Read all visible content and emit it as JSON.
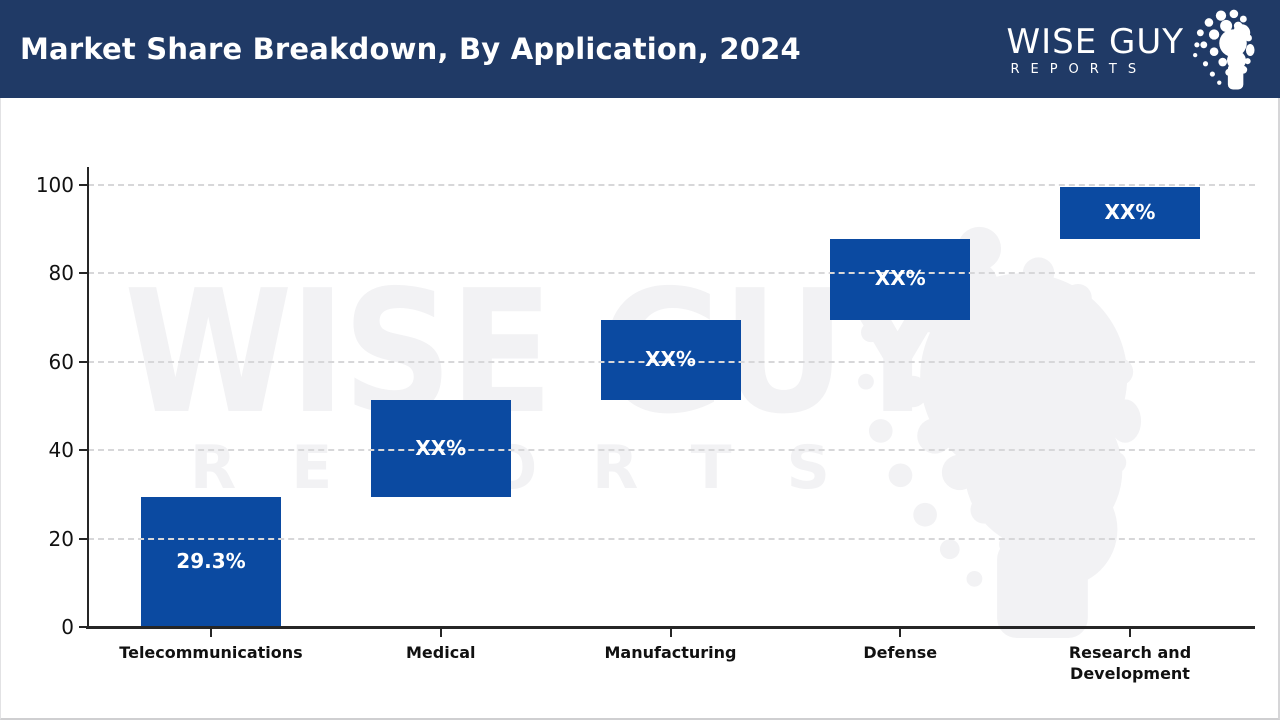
{
  "header": {
    "title": "Market Share Breakdown, By Application, 2024",
    "logo": {
      "wordmark": "WISE GUY",
      "subtext": "REPORTS"
    }
  },
  "watermark": {
    "wordmark": "WISE GUY",
    "subtext": "REPORTS"
  },
  "colors": {
    "header_bg": "#203A66",
    "title_text": "#FFFFFF",
    "bar": "#0B4AA1",
    "bar_label": "#FFFFFF",
    "grid": "#D7D7D9",
    "axis": "#262626",
    "watermark": "#F2F2F4"
  },
  "chart_data": {
    "type": "bar",
    "subtype": "waterfall",
    "title": "Market Share Breakdown, By Application, 2024",
    "categories": [
      "Telecommunications",
      "Medical",
      "Manufacturing",
      "Defense",
      "Research and Development"
    ],
    "segments": [
      {
        "category": "Telecommunications",
        "start": 0,
        "end": 29.3,
        "label": "29.3%"
      },
      {
        "category": "Medical",
        "start": 29.3,
        "end": 51.3,
        "label": "XX%"
      },
      {
        "category": "Manufacturing",
        "start": 51.3,
        "end": 69.5,
        "label": "XX%"
      },
      {
        "category": "Defense",
        "start": 69.5,
        "end": 87.8,
        "label": "XX%"
      },
      {
        "category": "Research and Development",
        "start": 87.8,
        "end": 99.6,
        "label": "XX%"
      }
    ],
    "yticks": [
      0,
      20,
      40,
      60,
      80,
      100
    ],
    "ylim": [
      0,
      104
    ],
    "xlabel": "",
    "ylabel": "",
    "grid": "horizontal-dashed",
    "legend": null
  }
}
